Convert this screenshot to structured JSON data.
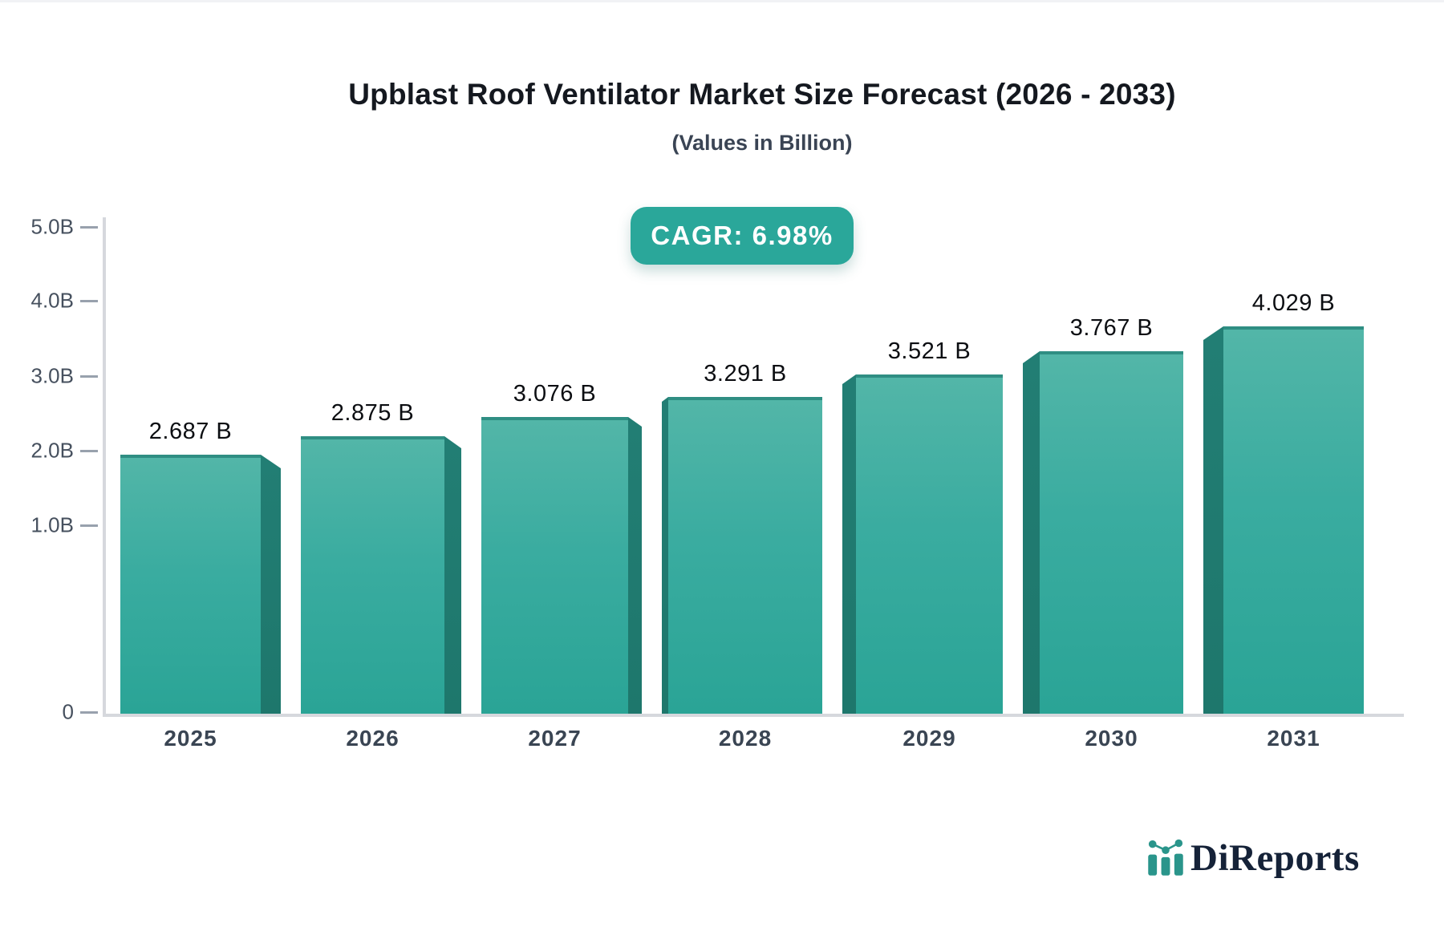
{
  "header": {
    "title": "Upblast Roof Ventilator Market Size Forecast (2026 - 2033)",
    "subtitle": "(Values in Billion)",
    "cagr_label": "CAGR: 6.98%"
  },
  "chart_data": {
    "type": "bar",
    "title": "Upblast Roof Ventilator Market Size Forecast (2026 - 2033)",
    "subtitle": "(Values in Billion)",
    "categories": [
      "2025",
      "2026",
      "2027",
      "2028",
      "2029",
      "2030",
      "2031"
    ],
    "values": [
      2.687,
      2.875,
      3.076,
      3.291,
      3.521,
      3.767,
      4.029
    ],
    "bar_labels": [
      "2.687 B",
      "2.875 B",
      "3.076 B",
      "3.291 B",
      "3.521 B",
      "3.767 B",
      "4.029 B"
    ],
    "xlabel": "",
    "ylabel": "",
    "ylim": [
      0,
      5
    ],
    "ytick_labels": [
      "5.0B",
      "4.0B",
      "3.0B",
      "2.0B",
      "1.0B",
      "0"
    ],
    "grid": false,
    "legend": false,
    "annotation": "CAGR: 6.98%",
    "colors": {
      "bar_face_top": "#53b6a8",
      "bar_face_bottom": "#2aa496",
      "bar_side": "#1f7d73",
      "bar_top_edge": "#2f8e83",
      "badge_background": "#2aa79a",
      "axis_line": "#d6d8dd",
      "tick_text": "#46505e",
      "label_text": "#0c0e12"
    }
  },
  "branding": {
    "logo_text": "DiReports",
    "logo_icon": "bar-chart-trend-icon",
    "logo_icon_color": "#2a958b",
    "logo_text_color": "#152238"
  }
}
